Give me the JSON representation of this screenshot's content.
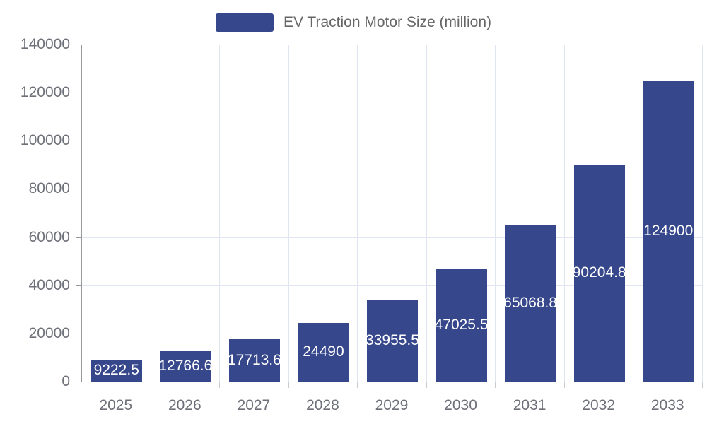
{
  "legend": {
    "label": "EV Traction Motor Size (million)"
  },
  "colors": {
    "bar": "#36478B",
    "bar_label_text": "#FFFFFF",
    "legend_text": "#666666",
    "axis_label_text": "#6E7079",
    "grid_line": "#E0E6F1",
    "y_axis_line": "#999999",
    "x_axis_line": "#CCCCCC",
    "background": "#FFFFFF"
  },
  "chart_data": {
    "type": "bar",
    "title": "EV Traction Motor Size (million)",
    "categories": [
      "2025",
      "2026",
      "2027",
      "2028",
      "2029",
      "2030",
      "2031",
      "2032",
      "2033"
    ],
    "values": [
      9222.5,
      12766.6,
      17713.6,
      24490,
      33955.5,
      47025.5,
      65068.8,
      90204.8,
      124900
    ],
    "xlabel": "",
    "ylabel": "",
    "ylim": [
      0,
      140000
    ],
    "yticks": [
      0,
      20000,
      40000,
      60000,
      80000,
      100000,
      120000,
      140000
    ],
    "grid": true,
    "legend_position": "top-center",
    "bar_label_position": "inside-center"
  }
}
